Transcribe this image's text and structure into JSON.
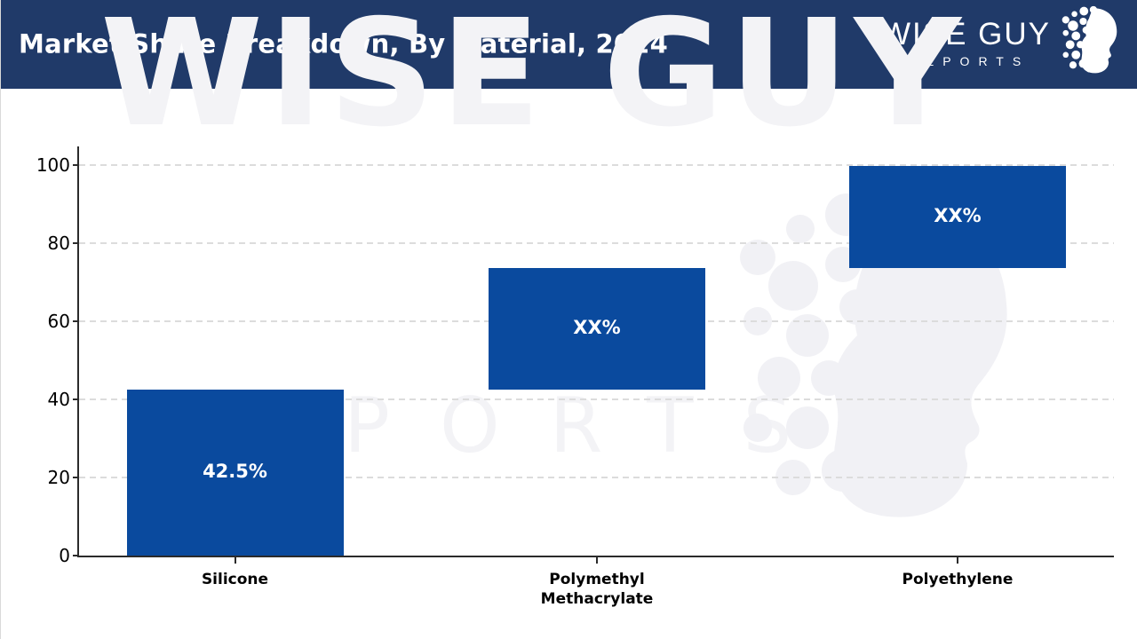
{
  "header": {
    "title": "Market Share Breakdown, By Material, 2024",
    "background_color": "#203a69",
    "logo": {
      "primary": "WISE GUY",
      "secondary": "REPORTS"
    }
  },
  "watermark": {
    "primary": "WISE GUY",
    "secondary": "REPORTS"
  },
  "chart_data": {
    "type": "bar",
    "subtype": "waterfall",
    "title": "Market Share Breakdown, By Material, 2024",
    "categories": [
      "Silicone",
      "Polymethyl Methacrylate",
      "Polyethylene"
    ],
    "segments": [
      {
        "category": "Silicone",
        "start": 0,
        "end": 42.5,
        "label": "42.5%"
      },
      {
        "category": "Polymethyl Methacrylate",
        "start": 42.5,
        "end": 73.6,
        "label": "XX%"
      },
      {
        "category": "Polyethylene",
        "start": 73.6,
        "end": 99.8,
        "label": "XX%"
      }
    ],
    "yticks": [
      0,
      20,
      40,
      60,
      80,
      100
    ],
    "ylim": [
      0,
      105
    ],
    "xlabel": "",
    "ylabel": "",
    "grid": "horizontal-dashed",
    "legend": "none",
    "bar_color": "#0a4a9e",
    "label_color": "#ffffff",
    "grid_color": "#dcdcdc",
    "axis_color": "#2b2b2b"
  }
}
